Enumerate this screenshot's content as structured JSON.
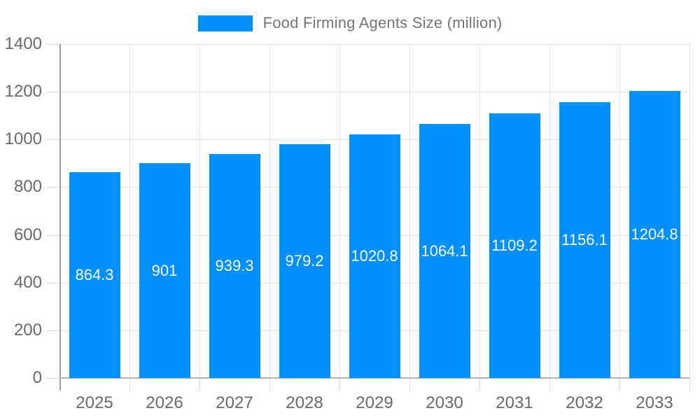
{
  "legend": {
    "label": "Food Firming Agents Size (million)"
  },
  "chart_data": {
    "type": "bar",
    "title": "Food Firming Agents Size (million)",
    "categories": [
      "2025",
      "2026",
      "2027",
      "2028",
      "2029",
      "2030",
      "2031",
      "2032",
      "2033"
    ],
    "series": [
      {
        "name": "Food Firming Agents Size (million)",
        "values": [
          864.3,
          901,
          939.3,
          979.2,
          1020.8,
          1064.1,
          1109.2,
          1156.1,
          1204.8
        ]
      }
    ],
    "value_labels": [
      "864.3",
      "901",
      "939.3",
      "979.2",
      "1020.8",
      "1064.1",
      "1109.2",
      "1156.1",
      "1204.8"
    ],
    "xlabel": "",
    "ylabel": "",
    "ylim": [
      0,
      1400
    ],
    "yticks": [
      0,
      200,
      400,
      600,
      800,
      1000,
      1200,
      1400
    ],
    "grid": true,
    "legend_position": "top",
    "colors": {
      "bar": "#008FFB",
      "grid": "#e3e3e3",
      "axis_line": "#9e9e9e",
      "baseline": "#b3b3b3",
      "tick": "#d9d9d9",
      "axis_label": "#696969",
      "legend_label": "#757575",
      "value_label": "#ffffff",
      "background": "#ffffff"
    }
  }
}
